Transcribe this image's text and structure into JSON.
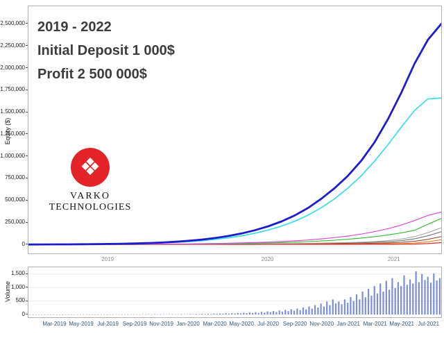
{
  "annotation": {
    "line1": "2019 - 2022",
    "line2": "Initial Deposit 1 000$",
    "line3": "Profit 2 500 000$"
  },
  "logo": {
    "name": "VARKO",
    "name2": "TECHNOLOGIES",
    "icon": "❖",
    "circle_color": "#e42328"
  },
  "chart_data": [
    {
      "type": "line",
      "panel": "equity",
      "title": "",
      "xlabel": "",
      "ylabel": "Equity ($)",
      "ylim": [
        -100000,
        2700000
      ],
      "grid": false,
      "x_months_range": [
        0,
        31
      ],
      "yticks": {
        "values": [
          0,
          250000,
          500000,
          750000,
          1000000,
          1250000,
          1500000,
          1750000,
          2000000,
          2250000,
          2500000
        ],
        "labels": [
          "0",
          "250,000",
          "500,000",
          "750,000",
          "1,000,000",
          "1,250,000",
          "1,500,000",
          "1,750,000",
          "2,000,000",
          "2,250,000",
          "2,500,000"
        ]
      },
      "year_labels": [
        {
          "label": "2019",
          "month": 6
        },
        {
          "label": "2020",
          "month": 18
        },
        {
          "label": "2021",
          "month": 27.5
        }
      ],
      "series": [
        {
          "name": "line-gray-dark",
          "color": "#646464",
          "width": 1,
          "values": [
            1000,
            1030,
            1100,
            1200,
            1330,
            1480,
            1660,
            1870,
            2100,
            2380,
            2700,
            3060,
            3480,
            3960,
            4510,
            5150,
            5880,
            6720,
            7690,
            8800,
            10100,
            11600,
            13300,
            15300,
            17600,
            20800,
            25500,
            33000,
            45000,
            65000,
            100000,
            145000
          ]
        },
        {
          "name": "line-brown",
          "color": "#8b3a2a",
          "width": 1,
          "values": [
            1000,
            1020,
            1070,
            1140,
            1230,
            1340,
            1470,
            1620,
            1790,
            1990,
            2210,
            2460,
            2750,
            3070,
            3430,
            3840,
            4300,
            4820,
            5410,
            6080,
            6840,
            7700,
            8670,
            9770,
            11000,
            12700,
            15000,
            19000,
            26000,
            38000,
            60000,
            90000
          ]
        },
        {
          "name": "line-orange",
          "color": "#e8821e",
          "width": 1.1,
          "values": [
            1000,
            1010,
            1040,
            1080,
            1130,
            1200,
            1280,
            1370,
            1480,
            1600,
            1740,
            1890,
            2060,
            2250,
            2460,
            2690,
            2950,
            3230,
            3550,
            3900,
            4290,
            4720,
            5200,
            5730,
            6330,
            7000,
            7900,
            9300,
            11800,
            17000,
            32000,
            55000
          ]
        },
        {
          "name": "line-red",
          "color": "#e02828",
          "width": 1.2,
          "values": [
            1000,
            1005,
            1015,
            1030,
            1050,
            1075,
            1105,
            1140,
            1180,
            1225,
            1275,
            1330,
            1390,
            1455,
            1525,
            1600,
            1680,
            1765,
            1855,
            1950,
            2050,
            2160,
            2280,
            2400,
            2540,
            2700,
            2900,
            3200,
            3800,
            5500,
            11000,
            22000
          ]
        },
        {
          "name": "line-gray",
          "color": "#a0a0a0",
          "width": 1,
          "values": [
            1000,
            1050,
            1150,
            1280,
            1440,
            1630,
            1850,
            2110,
            2400,
            2750,
            3150,
            3600,
            4150,
            4750,
            5450,
            6300,
            7250,
            8350,
            9600,
            11000,
            12700,
            14700,
            16900,
            19500,
            22500,
            27000,
            34000,
            45000,
            62000,
            90000,
            135000,
            190000
          ]
        },
        {
          "name": "line-green",
          "color": "#2eb82e",
          "width": 1.1,
          "values": [
            1000,
            1080,
            1200,
            1360,
            1560,
            1800,
            2100,
            2450,
            2900,
            3450,
            4100,
            4900,
            5900,
            7100,
            8600,
            10400,
            12600,
            15300,
            18600,
            22600,
            27500,
            33500,
            40800,
            49700,
            60500,
            73700,
            89800,
            109000,
            133000,
            162000,
            230000,
            295000
          ]
        },
        {
          "name": "line-magenta",
          "color": "#e049d8",
          "width": 1.2,
          "values": [
            1000,
            1100,
            1250,
            1450,
            1700,
            2000,
            2400,
            2900,
            3500,
            4300,
            5300,
            6500,
            8000,
            9900,
            12200,
            15000,
            18500,
            22800,
            28000,
            34500,
            42500,
            52000,
            64000,
            79000,
            97000,
            119000,
            146000,
            180000,
            221000,
            272000,
            330000,
            368000
          ]
        },
        {
          "name": "line-cyan",
          "color": "#40dde8",
          "width": 1.8,
          "values": [
            1000,
            1300,
            1700,
            2300,
            3100,
            4200,
            5700,
            7700,
            10400,
            14000,
            19000,
            25000,
            33000,
            44000,
            58000,
            76000,
            99000,
            128000,
            164000,
            209000,
            264000,
            333000,
            418000,
            520000,
            640000,
            780000,
            945000,
            1130000,
            1330000,
            1520000,
            1650000,
            1660000
          ]
        },
        {
          "name": "line-main-blue",
          "color": "#1c1ccd",
          "width": 2.8,
          "values": [
            1000,
            1400,
            1900,
            2600,
            3600,
            5000,
            6800,
            9200,
            12500,
            17000,
            23000,
            31000,
            42000,
            56000,
            74000,
            97000,
            126000,
            162000,
            207000,
            262000,
            330000,
            415000,
            520000,
            640000,
            780000,
            950000,
            1160000,
            1420000,
            1720000,
            2050000,
            2320000,
            2500000
          ]
        }
      ]
    },
    {
      "type": "bar",
      "panel": "volume",
      "title": "",
      "xlabel": "",
      "ylabel": "Volume",
      "ylim": [
        -100,
        1750
      ],
      "bar_color": "#7d8ed9",
      "yticks": {
        "values": [
          0,
          500,
          1000,
          1500
        ],
        "labels": [
          "0",
          "500",
          "1,000",
          "1,500"
        ]
      },
      "x_axis_labels": [
        {
          "label": "Mar-2019",
          "month": 2
        },
        {
          "label": "May-2019",
          "month": 4
        },
        {
          "label": "Jul-2019",
          "month": 6
        },
        {
          "label": "Sep-2019",
          "month": 8
        },
        {
          "label": "Nov-2019",
          "month": 10
        },
        {
          "label": "Jan-2020",
          "month": 12
        },
        {
          "label": "Mar-2020",
          "month": 14
        },
        {
          "label": "May-2020",
          "month": 16
        },
        {
          "label": "Jul-2020",
          "month": 18
        },
        {
          "label": "Sep-2020",
          "month": 20
        },
        {
          "label": "Nov-2020",
          "month": 22
        },
        {
          "label": "Jan-2021",
          "month": 24
        },
        {
          "label": "Mar-2021",
          "month": 26
        },
        {
          "label": "May-2021",
          "month": 28
        },
        {
          "label": "Jul-2021",
          "month": 30
        }
      ],
      "values": [
        3,
        5,
        2,
        6,
        4,
        8,
        3,
        5,
        7,
        4,
        6,
        3,
        8,
        5,
        9,
        4,
        6,
        10,
        5,
        7,
        4,
        9,
        6,
        8,
        5,
        11,
        6,
        9,
        7,
        12,
        8,
        6,
        10,
        7,
        13,
        8,
        11,
        6,
        14,
        9,
        12,
        7,
        15,
        10,
        8,
        13,
        9,
        16,
        11,
        14,
        10,
        18,
        14,
        10,
        18,
        12,
        22,
        15,
        26,
        18,
        30,
        22,
        35,
        26,
        40,
        30,
        46,
        34,
        52,
        38,
        60,
        44,
        68,
        50,
        78,
        56,
        88,
        64,
        100,
        72,
        115,
        82,
        130,
        95,
        150,
        110,
        170,
        125,
        195,
        145,
        225,
        165,
        260,
        190,
        300,
        220,
        350,
        260,
        410,
        300,
        480,
        350,
        560,
        410,
        480,
        380,
        560,
        440,
        650,
        500,
        750,
        560,
        850,
        640,
        950,
        700,
        1050,
        780,
        1150,
        850,
        1250,
        920,
        1350,
        980,
        1200,
        1050,
        1450,
        1100,
        1300,
        1150,
        1600,
        1200,
        1500,
        1280,
        1400,
        1180,
        1520,
        1260,
        1350
      ]
    }
  ]
}
